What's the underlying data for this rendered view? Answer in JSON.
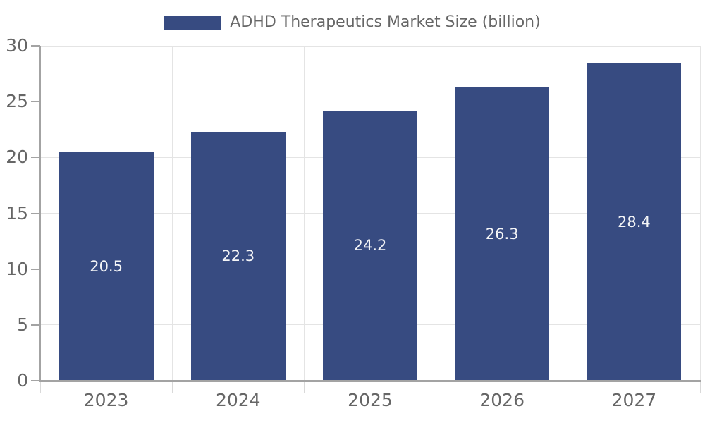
{
  "chart_data": {
    "type": "bar",
    "title": "ADHD Therapeutics Market Size (billion)",
    "legend": {
      "label": "ADHD Therapeutics Market Size (billion)",
      "position": "top-center"
    },
    "categories": [
      "2023",
      "2024",
      "2025",
      "2026",
      "2027"
    ],
    "values": [
      20.5,
      22.3,
      24.2,
      26.3,
      28.4
    ],
    "value_labels": [
      "20.5",
      "22.3",
      "24.2",
      "26.3",
      "28.4"
    ],
    "xlabel": "",
    "ylabel": "",
    "ylim": [
      0,
      30
    ],
    "yticks": [
      0,
      5,
      10,
      15,
      20,
      25,
      30
    ],
    "grid": true,
    "colors": {
      "bar": "#374B81",
      "bar_value_label": "#F4F5F7",
      "tick_label": "#666666",
      "legend_text": "#666666",
      "gridline": "#E4E4E4",
      "minor_tick": "#D9D9D9",
      "axis": "#A3A3A3",
      "background": "#FFFFFF"
    }
  }
}
